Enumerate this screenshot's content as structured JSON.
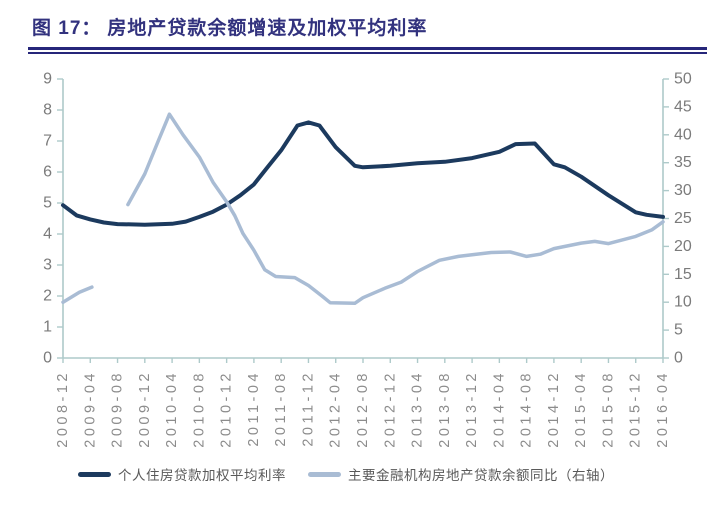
{
  "header": {
    "figure_label": "图 17：",
    "title": "房地产贷款余额增速及加权平均利率",
    "title_color": "#32327E",
    "underline_color": "#26267A"
  },
  "chart_data": {
    "type": "line",
    "title": "房地产贷款余额增速及加权平均利率",
    "grid": false,
    "legend_position": "bottom",
    "plot_bg": "#ffffff",
    "axis_color": "#AECACA",
    "y_tick_label_color": "#7B7B7B",
    "x_tick_label_color": "#8C8C8C",
    "x_labels": [
      "2008-12",
      "2009-04",
      "2009-08",
      "2009-12",
      "2010-04",
      "2010-08",
      "2010-12",
      "2011-04",
      "2011-08",
      "2011-12",
      "2012-04",
      "2012-08",
      "2012-12",
      "2013-04",
      "2013-08",
      "2013-12",
      "2014-04",
      "2014-08",
      "2014-12",
      "2015-04",
      "2015-08",
      "2015-12",
      "2016-04"
    ],
    "left_axis": {
      "min": 0,
      "max": 9,
      "step": 1,
      "ticks": [
        0,
        1,
        2,
        3,
        4,
        5,
        6,
        7,
        8,
        9
      ]
    },
    "right_axis": {
      "min": 0,
      "max": 50,
      "step": 5,
      "ticks": [
        0,
        5,
        10,
        15,
        20,
        25,
        30,
        35,
        40,
        45,
        50
      ]
    },
    "series": [
      {
        "name": "个人住房贷款加权平均利率",
        "axis": "left",
        "color": "#1C3A5E",
        "stroke_width": 4,
        "segments": [
          [
            [
              0,
              4.93
            ],
            [
              0.5,
              4.6
            ],
            [
              1,
              4.47
            ],
            [
              1.5,
              4.37
            ],
            [
              2,
              4.32
            ],
            [
              3,
              4.3
            ],
            [
              4,
              4.33
            ],
            [
              4.5,
              4.4
            ],
            [
              5,
              4.55
            ],
            [
              5.5,
              4.72
            ],
            [
              6,
              4.95
            ],
            [
              6.5,
              5.25
            ],
            [
              7,
              5.6
            ],
            [
              7.5,
              6.15
            ],
            [
              8,
              6.7
            ],
            [
              8.6,
              7.5
            ],
            [
              9,
              7.6
            ],
            [
              9.4,
              7.5
            ],
            [
              10,
              6.8
            ],
            [
              10.7,
              6.2
            ],
            [
              11,
              6.15
            ],
            [
              12,
              6.2
            ],
            [
              13,
              6.28
            ],
            [
              14,
              6.33
            ],
            [
              15,
              6.45
            ],
            [
              16,
              6.65
            ],
            [
              16.6,
              6.9
            ],
            [
              17.3,
              6.92
            ],
            [
              18,
              6.25
            ],
            [
              18.4,
              6.15
            ],
            [
              19,
              5.85
            ],
            [
              20,
              5.25
            ],
            [
              21,
              4.7
            ],
            [
              21.4,
              4.62
            ],
            [
              22,
              4.55
            ]
          ]
        ]
      },
      {
        "name": "主要金融机构房地产贷款余额同比（右轴）",
        "axis": "right",
        "color": "#A9BCD4",
        "stroke_width": 3.5,
        "segments": [
          [
            [
              0,
              10
            ],
            [
              0.6,
              11.8
            ],
            [
              1.06,
              12.7
            ]
          ],
          [
            [
              2.38,
              27.5
            ],
            [
              3,
              33
            ],
            [
              3.5,
              39
            ],
            [
              3.9,
              43.7
            ],
            [
              4.4,
              40
            ],
            [
              5,
              36
            ],
            [
              5.5,
              31.5
            ],
            [
              6,
              28
            ],
            [
              6.3,
              25.5
            ],
            [
              6.6,
              22.3
            ],
            [
              7,
              19.3
            ],
            [
              7.4,
              15.8
            ],
            [
              7.8,
              14.6
            ],
            [
              8.5,
              14.4
            ],
            [
              9,
              13
            ],
            [
              9.5,
              11.1
            ],
            [
              9.8,
              9.9
            ],
            [
              10.7,
              9.8
            ],
            [
              11,
              10.8
            ],
            [
              11.8,
              12.5
            ],
            [
              12.4,
              13.6
            ],
            [
              13,
              15.5
            ],
            [
              13.8,
              17.5
            ],
            [
              14.5,
              18.2
            ],
            [
              15,
              18.5
            ],
            [
              15.7,
              18.9
            ],
            [
              16.4,
              19
            ],
            [
              17,
              18.2
            ],
            [
              17.5,
              18.6
            ],
            [
              18,
              19.6
            ],
            [
              19,
              20.6
            ],
            [
              19.5,
              20.9
            ],
            [
              20,
              20.5
            ],
            [
              21,
              21.8
            ],
            [
              21.6,
              23
            ],
            [
              22,
              24.4
            ]
          ]
        ]
      }
    ]
  }
}
